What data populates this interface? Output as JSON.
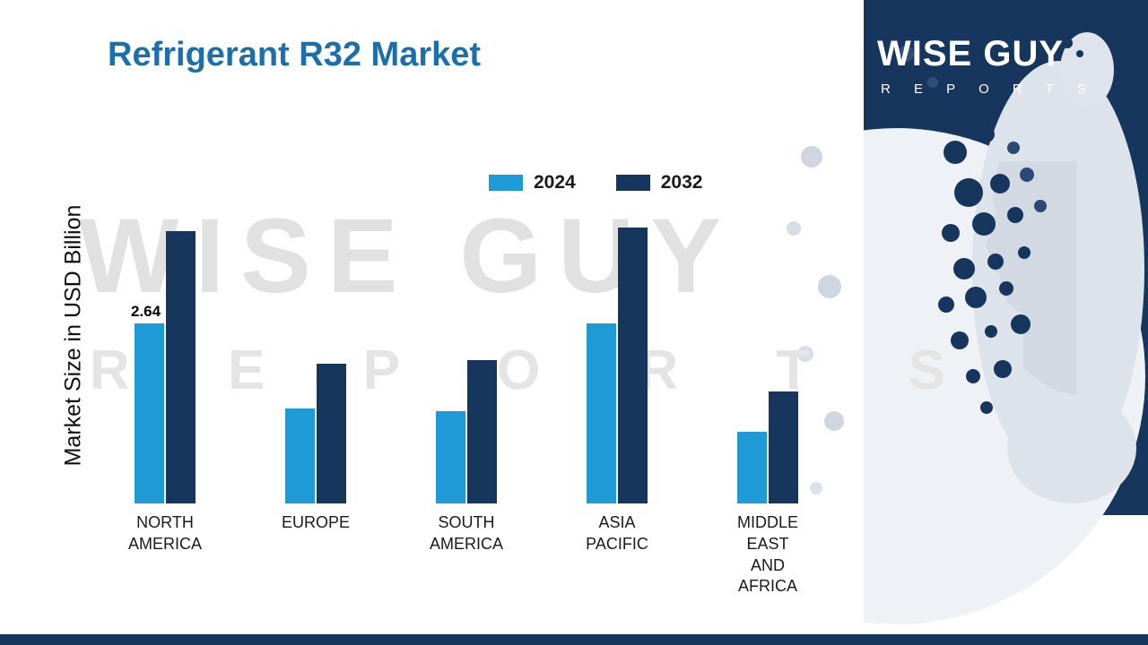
{
  "header": {
    "title": "Refrigerant R32 Market",
    "title_color": "#1b6fad"
  },
  "logo": {
    "line1": "WISE GUY",
    "line2": "R E P O R T S"
  },
  "watermark": {
    "line1": "WISE GUY",
    "line2": "R E P O R T S"
  },
  "chart_data": {
    "type": "bar",
    "title": "Refrigerant R32 Market",
    "xlabel": "",
    "ylabel": "Market Size in USD Billion",
    "categories": [
      "NORTH AMERICA",
      "EUROPE",
      "SOUTH AMERICA",
      "ASIA PACIFIC",
      "MIDDLE EAST AND AFRICA"
    ],
    "series": [
      {
        "name": "2024",
        "color": "#1e9bd7",
        "values": [
          2.64,
          1.4,
          1.35,
          2.65,
          1.05
        ]
      },
      {
        "name": "2032",
        "color": "#17365d",
        "values": [
          4.0,
          2.05,
          2.1,
          4.05,
          1.65
        ]
      }
    ],
    "annotations": [
      {
        "category_index": 0,
        "series_index": 0,
        "text": "2.64"
      }
    ],
    "ylim": [
      0,
      4.5
    ],
    "grid": false,
    "legend_position": "top"
  },
  "colors": {
    "accent_blue": "#1e9bd7",
    "navy": "#17365d",
    "title_blue": "#1b6fad",
    "watermark_gray": "#e1e1e1",
    "panel_light": "#eef1f5",
    "face_gray": "#dde3ea"
  }
}
